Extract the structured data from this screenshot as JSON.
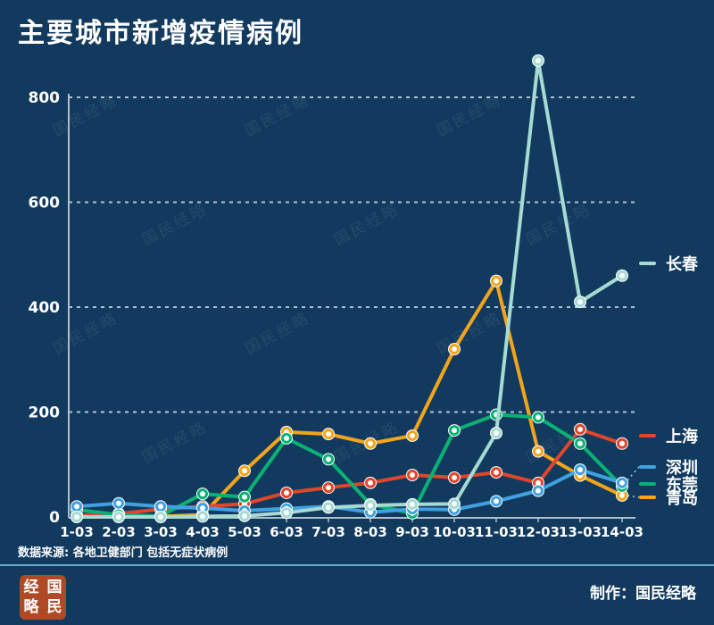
{
  "title": "主要城市新增疫情病例",
  "source_note": "数据来源: 各地卫健部门 包括无症状病例",
  "credit": "制作：国民经略",
  "watermark_text": "国民经略",
  "logo_chars": [
    "经",
    "国",
    "略",
    "民"
  ],
  "colors": {
    "background": "#123a5f",
    "changchun": "#a6dad2",
    "shanghai": "#df462c",
    "shenzhen": "#41a1e0",
    "dongguan": "#09b274",
    "qingdao": "#f2a51c",
    "axis": "#aebfcd",
    "gridline": "#e8f1f6",
    "divider": "#6ea9cd",
    "logo_background": "#b04a24"
  },
  "chart_data": {
    "type": "line",
    "title": "主要城市新增疫情病例",
    "xlabel": "",
    "ylabel": "",
    "ylim": [
      0,
      800
    ],
    "yticks": [
      0,
      200,
      400,
      600,
      800
    ],
    "grid": "horizontal-dashed",
    "legend_position": "right",
    "categories": [
      "1-03",
      "2-03",
      "3-03",
      "4-03",
      "5-03",
      "6-03",
      "7-03",
      "8-03",
      "9-03",
      "10-03",
      "11-03",
      "12-03",
      "13-03",
      "14-03"
    ],
    "series": [
      {
        "name": "长春",
        "color": "#a6dad2",
        "values": [
          0,
          0,
          0,
          1,
          2,
          8,
          18,
          22,
          24,
          25,
          160,
          870,
          410,
          460
        ]
      },
      {
        "name": "上海",
        "color": "#df462c",
        "values": [
          3,
          6,
          15,
          20,
          25,
          46,
          56,
          65,
          80,
          75,
          85,
          65,
          167,
          140
        ]
      },
      {
        "name": "深圳",
        "color": "#41a1e0",
        "values": [
          20,
          26,
          20,
          17,
          12,
          16,
          20,
          9,
          15,
          14,
          30,
          50,
          90,
          65
        ]
      },
      {
        "name": "东莞",
        "color": "#09b274",
        "values": [
          14,
          4,
          2,
          44,
          38,
          150,
          110,
          24,
          7,
          165,
          195,
          190,
          140,
          58
        ]
      },
      {
        "name": "青岛",
        "color": "#f2a51c",
        "values": [
          1,
          1,
          1,
          4,
          88,
          162,
          158,
          140,
          155,
          320,
          450,
          125,
          79,
          41
        ]
      }
    ]
  }
}
